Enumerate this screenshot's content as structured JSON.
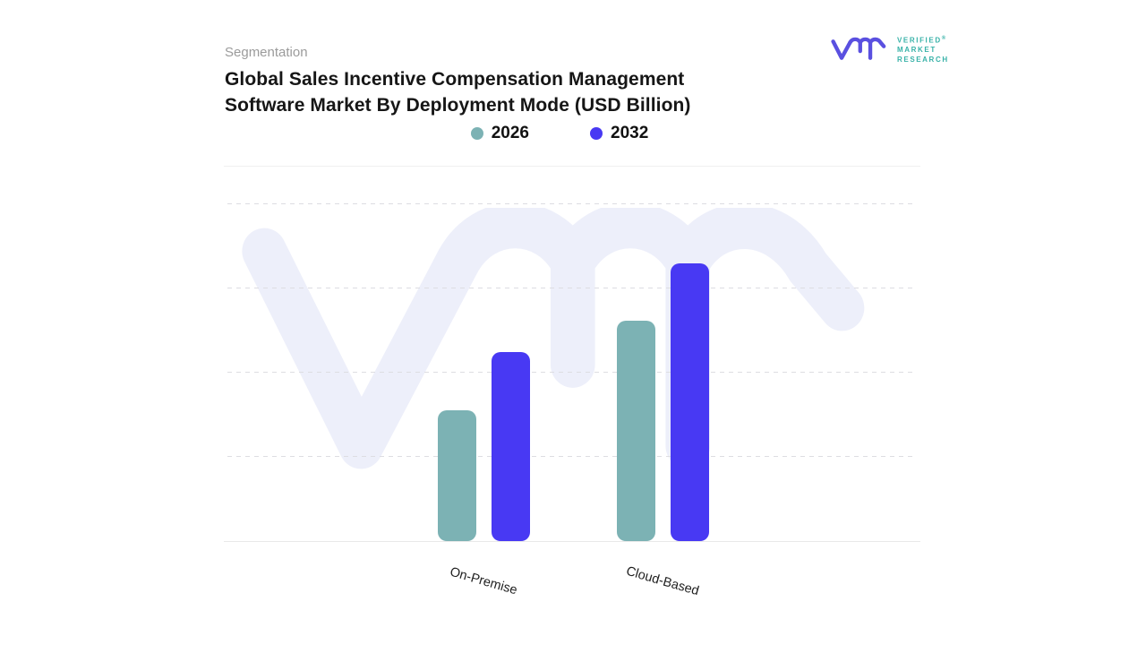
{
  "header": {
    "eyebrow": "Segmentation",
    "title_line1": "Global Sales Incentive Compensation Management",
    "title_line2": "Software Market By Deployment Mode (USD Billion)"
  },
  "brand": {
    "lines": [
      "Verified",
      "Market",
      "Research"
    ],
    "registered_mark": "®",
    "mark_color": "#5a50e0",
    "text_color": "#38b2a8"
  },
  "watermark": {
    "color": "#edeffa"
  },
  "chart_data": {
    "type": "bar",
    "title": "Global Sales Incentive Compensation Management Software Market By Deployment Mode (USD Billion)",
    "units": "USD Billion",
    "categories": [
      "On-Premise",
      "Cloud-Based"
    ],
    "series": [
      {
        "name": "2026",
        "color": "#7cb2b4",
        "values": [
          1.55,
          2.62
        ]
      },
      {
        "name": "2032",
        "color": "#4839f3",
        "values": [
          2.25,
          3.3
        ]
      }
    ],
    "y_axis": {
      "tick_labels_visible": false,
      "ylim": [
        0,
        4.45
      ],
      "gridline_values": [
        1,
        2,
        3,
        4
      ],
      "grid_style": "dashed"
    },
    "legend_position": "top-center",
    "grid": true
  }
}
